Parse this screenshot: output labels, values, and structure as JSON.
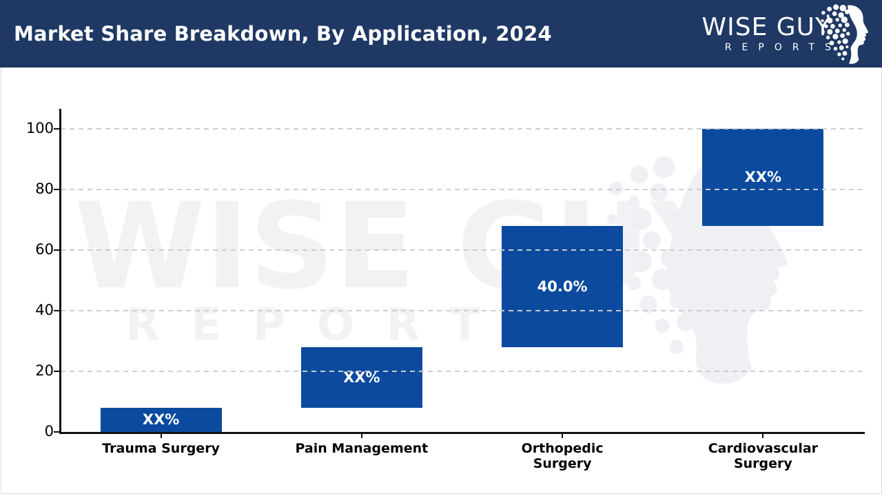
{
  "header": {
    "title": "Market Share Breakdown, By Application, 2024",
    "bg_color": "#1f3864",
    "logo": {
      "wordmark": "WISE GUY",
      "subtext": "REPORTS"
    }
  },
  "watermark": {
    "line1": "WISE GUY",
    "line2": "REPORTS"
  },
  "chart_data": {
    "type": "bar",
    "subtype": "waterfall",
    "title": "Market Share Breakdown, By Application, 2024",
    "categories": [
      "Trauma Surgery",
      "Pain Management",
      "Orthopedic Surgery",
      "Cardiovascular Surgery"
    ],
    "segments": [
      {
        "category": "Trauma Surgery",
        "start": 0,
        "end": 8,
        "label": "XX%"
      },
      {
        "category": "Pain Management",
        "start": 8,
        "end": 28,
        "label": "XX%"
      },
      {
        "category": "Orthopedic Surgery",
        "start": 28,
        "end": 68,
        "label": "40.0%"
      },
      {
        "category": "Cardiovascular Surgery",
        "start": 68,
        "end": 100,
        "label": "XX%"
      }
    ],
    "xlabel": "",
    "ylabel": "",
    "ylim": [
      0,
      100
    ],
    "yticks": [
      0,
      20,
      40,
      60,
      80,
      100
    ],
    "grid": "horizontal-dashed",
    "grid_over_bars": true,
    "legend": "none",
    "bar_color": "#0b4a9e",
    "bar_label_color": "#ffffff",
    "gridline_color": "#cdcdcd",
    "axis_color": "#111111",
    "watermark_color": "#f2f2f5"
  }
}
